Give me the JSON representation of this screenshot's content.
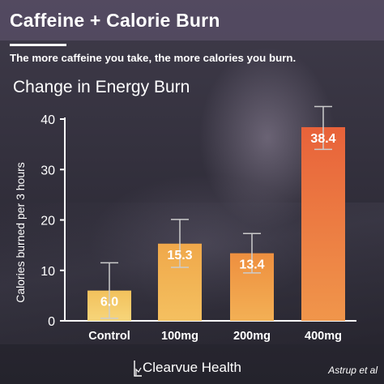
{
  "header": {
    "title": "Caffeine + Calorie Burn",
    "subtitle": "The more caffeine you take, the more calories you burn."
  },
  "footer": {
    "brand": "Clearvue Health",
    "source": "Astrup et al"
  },
  "colors": {
    "bar_top": [
      "#f2c15c",
      "#f0a84a",
      "#ee8f3f",
      "#e8623a"
    ],
    "bar_bottom": [
      "#f7d57a",
      "#f4c060",
      "#f3b055",
      "#f0964b"
    ],
    "axis": "#ffffff",
    "error_bar": "#cccccc"
  },
  "chart_data": {
    "type": "bar",
    "title": "Change in Energy Burn",
    "xlabel": "",
    "ylabel": "Calories burned per 3 hours",
    "categories": [
      "Control",
      "100mg",
      "200mg",
      "400mg"
    ],
    "values": [
      6.0,
      15.3,
      13.4,
      38.4
    ],
    "value_labels": [
      "6.0",
      "15.3",
      "13.4",
      "38.4"
    ],
    "error_upper": [
      11.5,
      20.1,
      17.3,
      42.5
    ],
    "error_lower": [
      0.5,
      10.6,
      9.5,
      34.0
    ],
    "yticks": [
      "0",
      "10",
      "20",
      "30",
      "40"
    ],
    "ytick_values": [
      0,
      10,
      20,
      30,
      40
    ],
    "ylim": [
      0,
      40
    ],
    "grid": false,
    "legend": "none"
  }
}
